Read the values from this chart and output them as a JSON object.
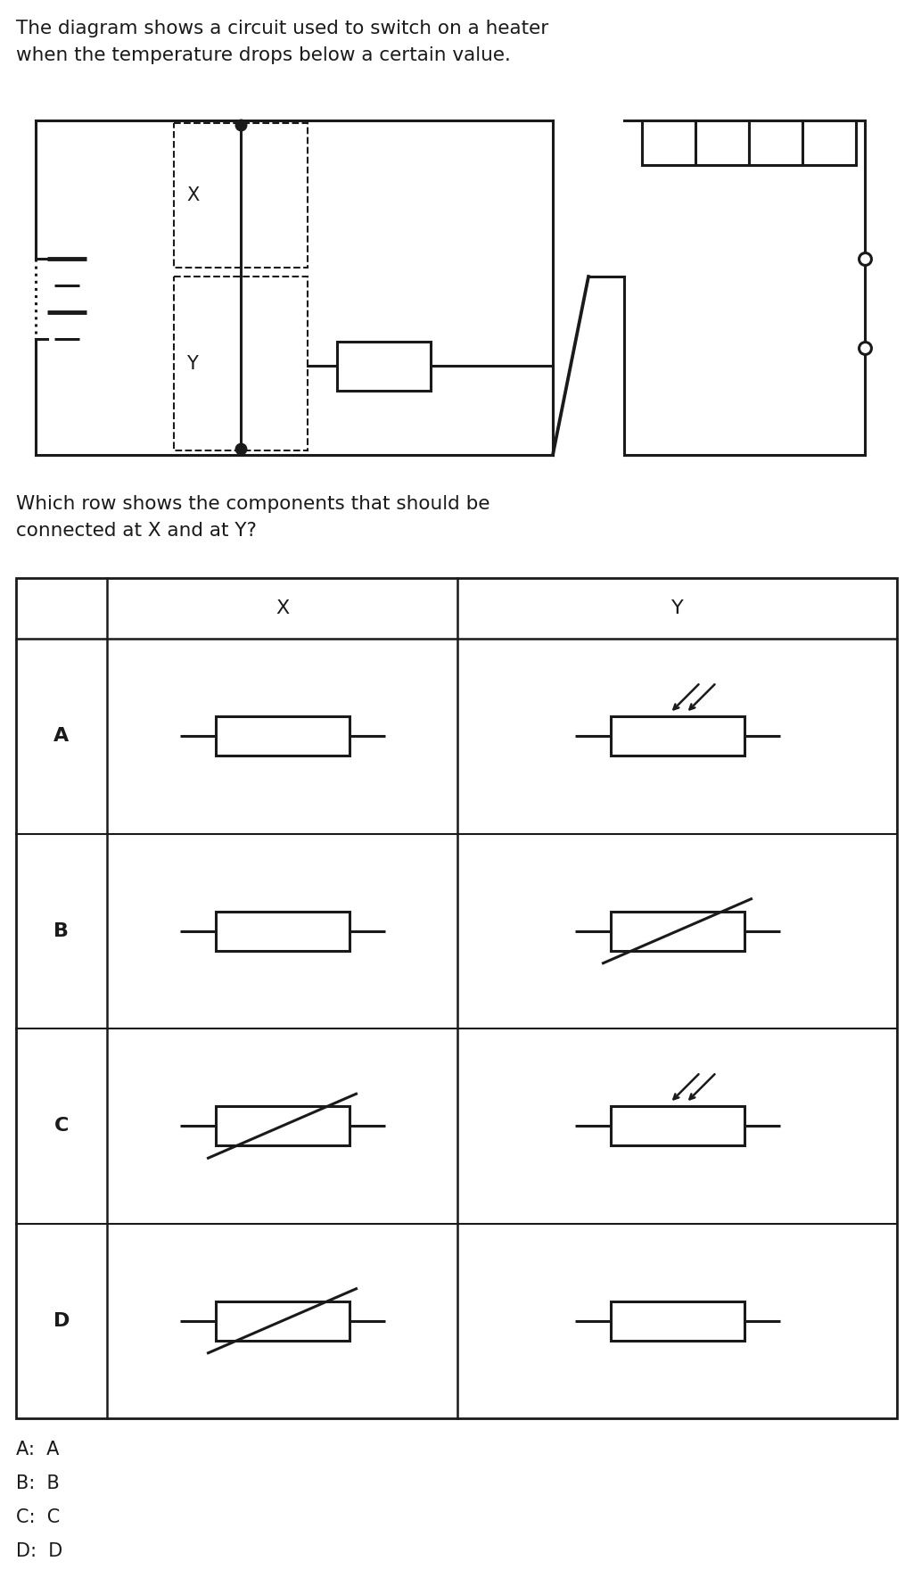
{
  "title_text": "The diagram shows a circuit used to switch on a heater\nwhen the temperature drops below a certain value.",
  "question_text": "Which row shows the components that should be\nconnected at X and at Y?",
  "answers": [
    "A:  A",
    "B:  B",
    "C:  C",
    "D:  D"
  ],
  "bg_color": "#ffffff",
  "line_color": "#1a1a1a",
  "table_rows": [
    "A",
    "B",
    "C",
    "D"
  ]
}
